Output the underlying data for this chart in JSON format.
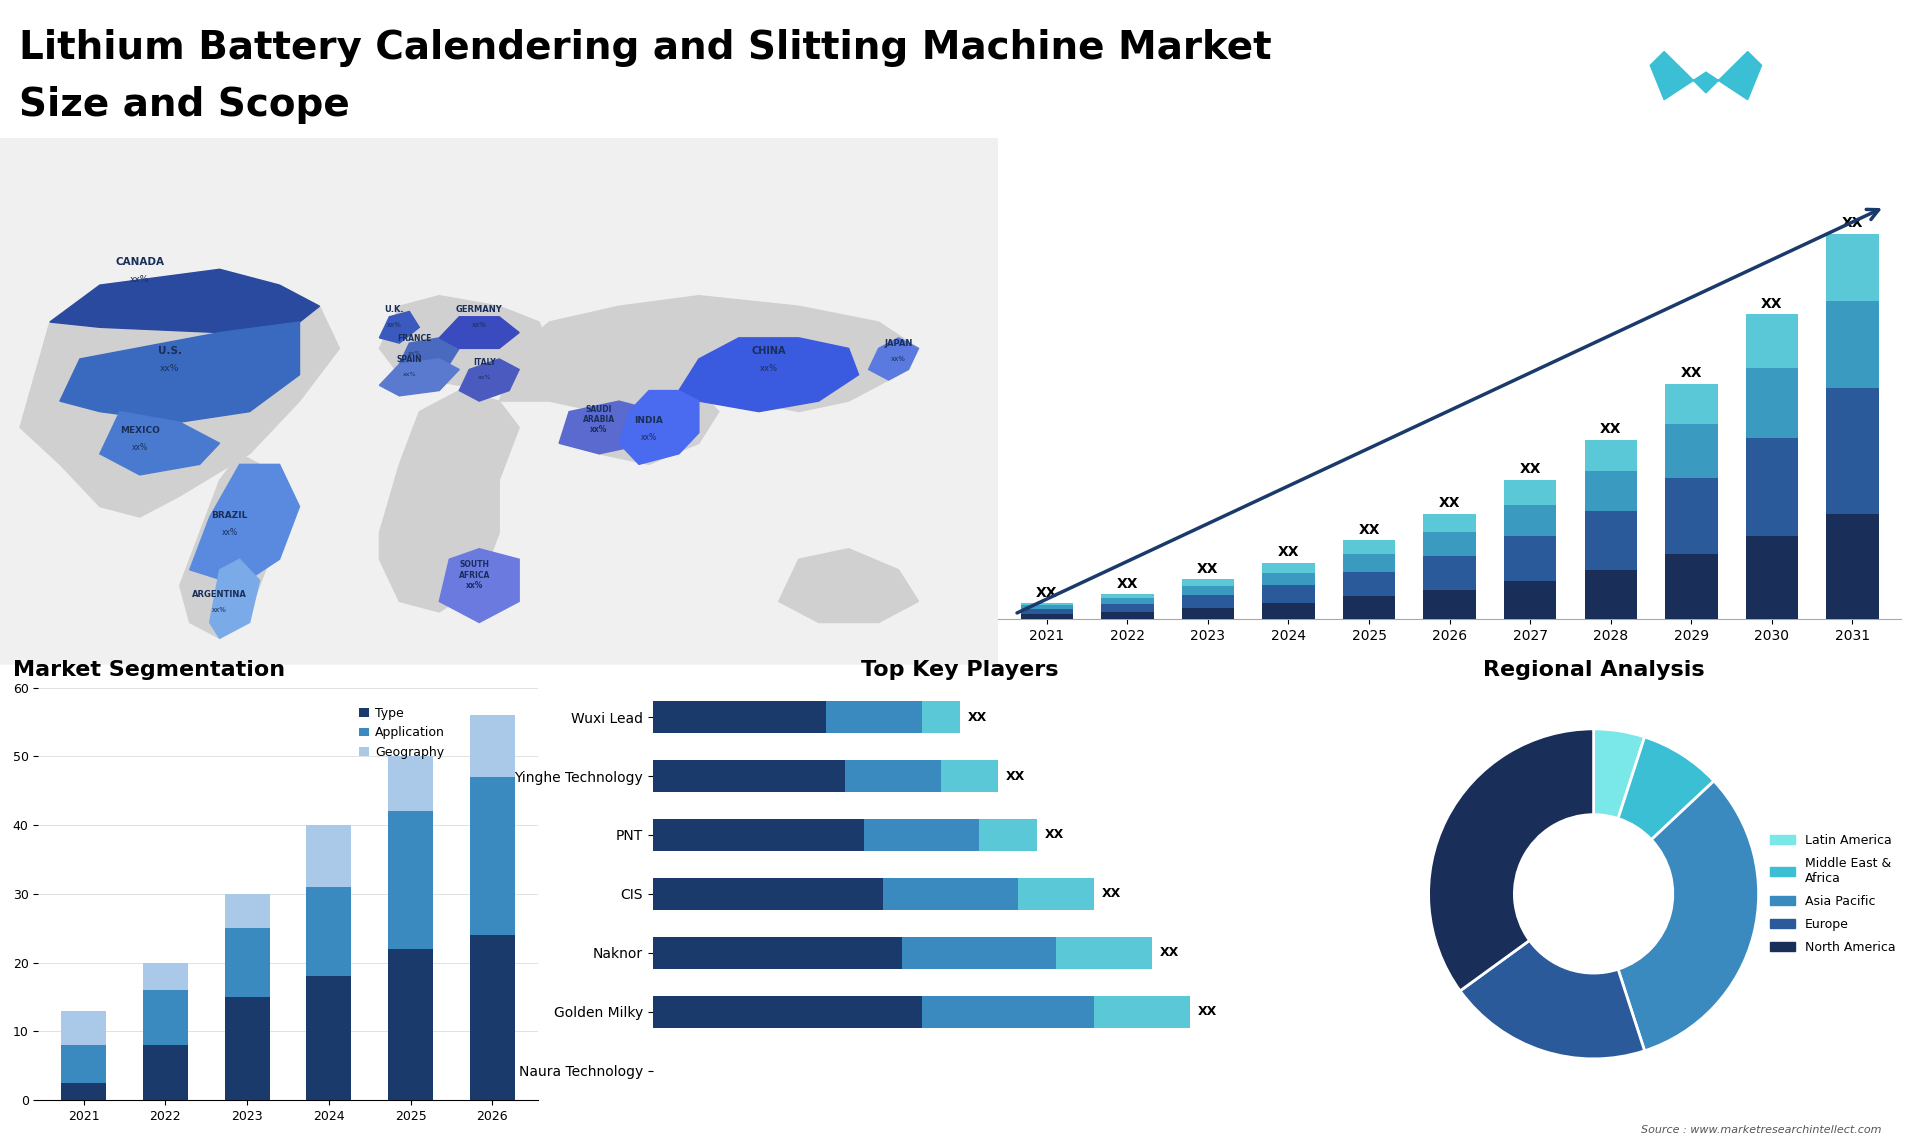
{
  "title_line1": "Lithium Battery Calendering and Slitting Machine Market",
  "title_line2": "Size and Scope",
  "title_fontsize": 28,
  "background_color": "#ffffff",
  "bar_chart_years": [
    2021,
    2022,
    2023,
    2024,
    2025,
    2026,
    2027,
    2028,
    2029,
    2030,
    2031
  ],
  "bar_seg1": [
    1.0,
    1.6,
    2.5,
    3.5,
    5.0,
    6.5,
    8.5,
    11.0,
    14.5,
    18.5,
    23.5
  ],
  "bar_seg2": [
    1.2,
    1.8,
    2.8,
    4.0,
    5.5,
    7.5,
    10.0,
    13.0,
    17.0,
    22.0,
    28.0
  ],
  "bar_seg3": [
    0.8,
    1.2,
    2.0,
    2.8,
    4.0,
    5.5,
    7.0,
    9.0,
    12.0,
    15.5,
    19.5
  ],
  "bar_seg4": [
    0.5,
    0.9,
    1.5,
    2.2,
    3.0,
    4.0,
    5.5,
    7.0,
    9.0,
    12.0,
    15.0
  ],
  "bar_seg1_color": "#1a2e5a",
  "bar_seg2_color": "#2a5a9a",
  "bar_seg3_color": "#3a9abf",
  "bar_seg4_color": "#5bc8d8",
  "bar_arrow_color": "#1a3a6b",
  "seg_chart_title": "Market Segmentation",
  "seg_years": [
    2021,
    2022,
    2023,
    2024,
    2025,
    2026
  ],
  "seg_type": [
    2.5,
    8.0,
    15.0,
    18.0,
    22.0,
    24.0
  ],
  "seg_application": [
    5.5,
    8.0,
    10.0,
    13.0,
    20.0,
    23.0
  ],
  "seg_geography": [
    5.0,
    4.0,
    5.0,
    9.0,
    8.0,
    9.0
  ],
  "seg_type_color": "#1a3a6b",
  "seg_application_color": "#3a8abf",
  "seg_geography_color": "#aac8e8",
  "seg_ylim": [
    0,
    60
  ],
  "seg_yticks": [
    0,
    10,
    20,
    30,
    40,
    50,
    60
  ],
  "players_title": "Top Key Players",
  "players": [
    "Naura Technology",
    "Golden Milky",
    "Naknor",
    "CIS",
    "PNT",
    "Yinghe Technology",
    "Wuxi Lead"
  ],
  "players_naura_bar": false,
  "players_seg1": [
    0,
    7.0,
    6.5,
    6.0,
    5.5,
    5.0,
    4.5
  ],
  "players_seg2": [
    0,
    4.5,
    4.0,
    3.5,
    3.0,
    2.5,
    2.5
  ],
  "players_seg3": [
    0,
    2.5,
    2.5,
    2.0,
    1.5,
    1.5,
    1.0
  ],
  "players_color1": "#1a3a6b",
  "players_color2": "#3a8abf",
  "players_color3": "#5bc8d8",
  "donut_title": "Regional Analysis",
  "donut_sizes": [
    5,
    8,
    32,
    20,
    35
  ],
  "donut_colors": [
    "#7ae8e8",
    "#3abfd4",
    "#3a8abf",
    "#2a5a9a",
    "#1a2e5a"
  ],
  "donut_labels": [
    "Latin America",
    "Middle East &\nAfrica",
    "Asia Pacific",
    "Europe",
    "North America"
  ],
  "logo_bg": "#1a3a6b",
  "logo_text_color": "#ffffff",
  "logo_accent": "#3abfd4",
  "source_text": "Source : www.marketresearchintellect.com"
}
